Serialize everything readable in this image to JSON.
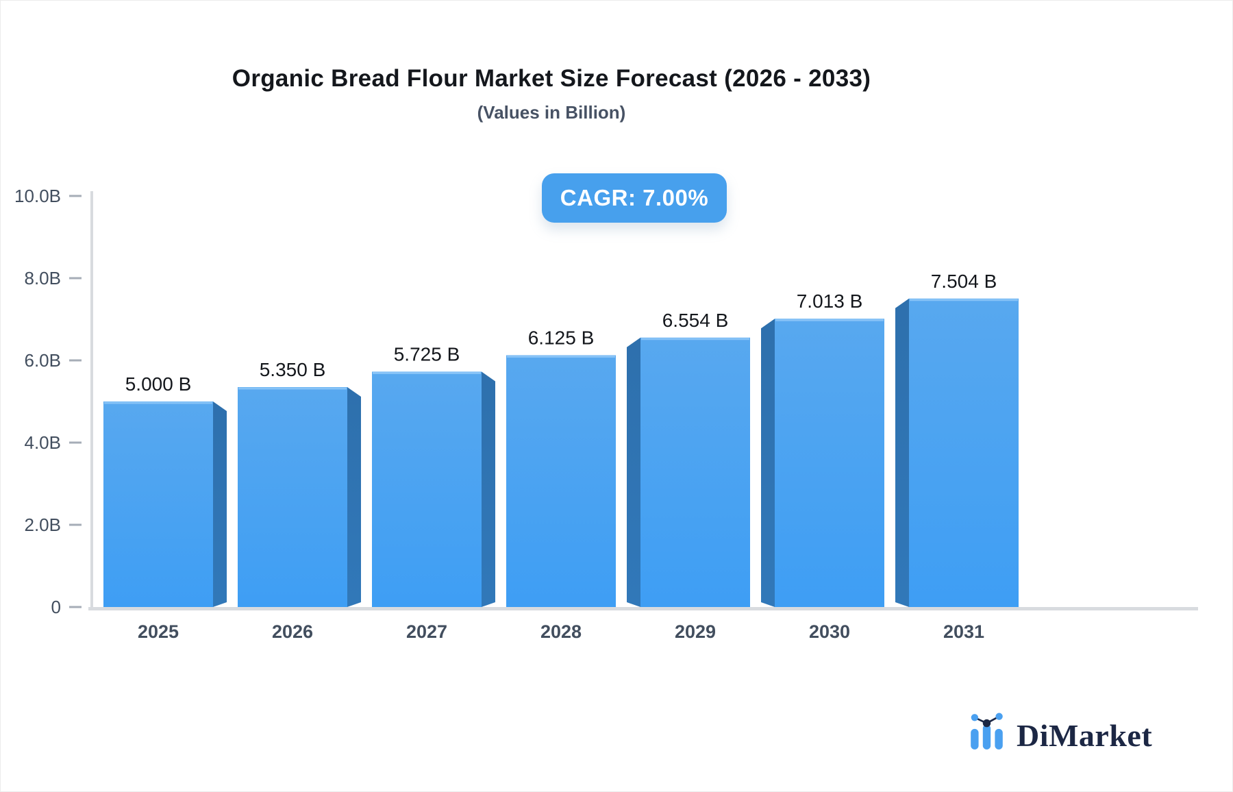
{
  "title": "Organic Bread Flour Market Size Forecast (2026 - 2033)",
  "subtitle": "(Values in Billion)",
  "badge": {
    "label": "CAGR: 7.00%"
  },
  "brand": {
    "name": "DiMarket",
    "icon": "mini-bar-line-chart-icon"
  },
  "colors": {
    "bar_front_top": "#58a8ef",
    "bar_front_bottom": "#3e9ef4",
    "bar_side": "#2e70ad",
    "bar_top_highlight": "#8dc6f8",
    "axis_line": "#d8dbdf",
    "tick_mark": "#a6adb7",
    "axis_label": "#424e5e",
    "value_label": "#14171c",
    "badge_bg": "#47a0ed",
    "logo_navy": "#1c2744",
    "logo_blue": "#4aa0f0"
  },
  "chart_data": {
    "type": "bar",
    "title": "Organic Bread Flour Market Size Forecast (2026 - 2033)",
    "subtitle": "(Values in Billion)",
    "categories": [
      "2025",
      "2026",
      "2027",
      "2028",
      "2029",
      "2030",
      "2031"
    ],
    "values": [
      5.0,
      5.35,
      5.725,
      6.125,
      6.554,
      7.013,
      7.504
    ],
    "value_labels": [
      "5.000 B",
      "5.350 B",
      "5.725 B",
      "6.125 B",
      "6.554 B",
      "7.013 B",
      "7.504 B"
    ],
    "cagr": "7.00%",
    "xlabel": "",
    "ylabel": "",
    "ylim": [
      0,
      10
    ],
    "yticks": [
      {
        "value": 0,
        "label": "0"
      },
      {
        "value": 2,
        "label": "2.0B"
      },
      {
        "value": 4,
        "label": "4.0B"
      },
      {
        "value": 6,
        "label": "6.0B"
      },
      {
        "value": 8,
        "label": "8.0B"
      },
      {
        "value": 10,
        "label": "10.0B"
      }
    ],
    "grid": false,
    "legend": null,
    "bar_style": "3d-perspective-center"
  }
}
